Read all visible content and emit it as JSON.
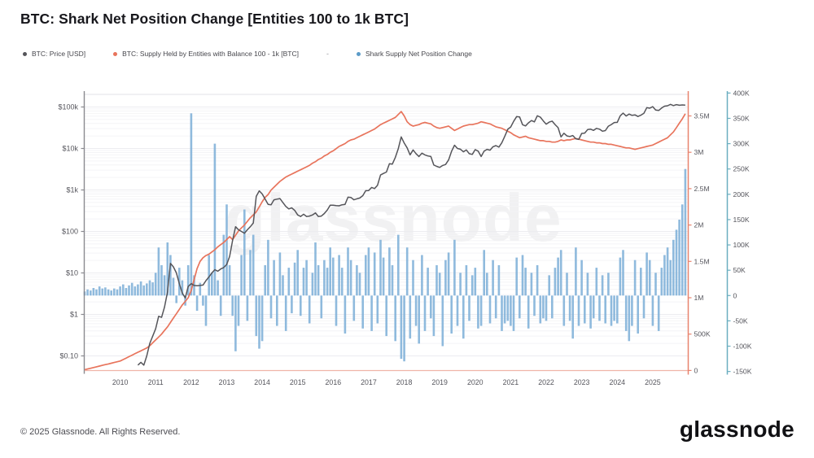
{
  "title": "BTC: Shark Net Position Change [Entities 100 to 1k BTC]",
  "legend": {
    "items": [
      {
        "label": "BTC: Price [USD]",
        "color": "#55555a"
      },
      {
        "label": "BTC: Supply Held by Entities with Balance 100 - 1k [BTC]",
        "color": "#e8745c"
      },
      {
        "label": "Shark Supply Net Position Change",
        "color": "#5b9bc8"
      }
    ],
    "separator": "-"
  },
  "watermark": "glassnode",
  "footer": {
    "copyright": "© 2025 Glassnode. All Rights Reserved.",
    "brand": "glassnode"
  },
  "colors": {
    "price_line": "#55555a",
    "supply_line": "#e8745c",
    "bars": "#7fb1d8",
    "axis_left": "#8a8a90",
    "axis_supply": "#e8836e",
    "axis_net": "#6aaec0",
    "axis_bottom": "#f0b4a8",
    "grid_major": "#ececf0",
    "grid_minor": "#f4f4f6",
    "plot_top_border": "#e4e4e8"
  },
  "axes": {
    "price": {
      "ticks": [
        "$100k",
        "$10k",
        "$1k",
        "$100",
        "$10",
        "$1",
        "$0.10"
      ],
      "values": [
        100000,
        10000,
        1000,
        100,
        10,
        1,
        0.1
      ]
    },
    "supply": {
      "ticks": [
        "3.5M",
        "3M",
        "2.5M",
        "2M",
        "1.5M",
        "1M",
        "500K",
        "0"
      ],
      "values": [
        3.5,
        3,
        2.5,
        2,
        1.5,
        1,
        0.5,
        0
      ]
    },
    "net": {
      "ticks": [
        "400K",
        "350K",
        "300K",
        "250K",
        "200K",
        "150K",
        "100K",
        "50K",
        "0",
        "-50K",
        "-100K",
        "-150K"
      ],
      "values": [
        400,
        350,
        300,
        250,
        200,
        150,
        100,
        50,
        0,
        -50,
        -100,
        -150
      ]
    },
    "x": {
      "ticks": [
        "2010",
        "2011",
        "2012",
        "2013",
        "2014",
        "2015",
        "2016",
        "2017",
        "2018",
        "2019",
        "2020",
        "2021",
        "2022",
        "2023",
        "2024",
        "2025"
      ]
    }
  },
  "chart_data": {
    "type": "mixed",
    "title": "BTC: Shark Net Position Change [Entities 100 to 1k BTC]",
    "x_start_year": 2009.0,
    "x_step_years": 0.0833333,
    "x_range": [
      2009.0,
      2026.0
    ],
    "x_tick_years": [
      2010,
      2011,
      2012,
      2013,
      2014,
      2015,
      2016,
      2017,
      2018,
      2019,
      2020,
      2021,
      2022,
      2023,
      2024,
      2025
    ],
    "grid": "horizontal-log-minor",
    "legend_position": "top-left",
    "y_axes": {
      "price_usd_log": {
        "scale": "log",
        "range": [
          0.1,
          100000
        ],
        "side": "left",
        "unit": "USD"
      },
      "supply_million_btc": {
        "scale": "linear",
        "range": [
          0,
          3.5
        ],
        "side": "right-inner",
        "unit": "M BTC"
      },
      "net_change_thousand_btc": {
        "scale": "linear",
        "range": [
          -150,
          400
        ],
        "side": "right-outer",
        "unit": "K BTC"
      }
    },
    "series": [
      {
        "name": "BTC: Price [USD]",
        "type": "line",
        "y_axis": "price_usd_log",
        "color": "#55555a",
        "values": [
          null,
          null,
          null,
          null,
          null,
          null,
          null,
          null,
          null,
          null,
          null,
          null,
          null,
          null,
          null,
          null,
          null,
          null,
          0.06,
          0.07,
          0.06,
          0.1,
          0.2,
          0.3,
          0.45,
          0.9,
          0.85,
          1.5,
          3.5,
          17,
          14,
          10,
          5.5,
          3.3,
          2.5,
          4.7,
          5.5,
          5.0,
          4.9,
          5.0,
          5.1,
          6.5,
          8,
          10,
          12,
          11,
          12.5,
          13.5,
          16,
          25,
          60,
          130,
          110,
          100,
          90,
          110,
          130,
          160,
          700,
          950,
          800,
          600,
          450,
          440,
          580,
          600,
          620,
          500,
          400,
          350,
          370,
          320,
          250,
          230,
          260,
          230,
          235,
          250,
          280,
          230,
          235,
          270,
          330,
          430,
          430,
          420,
          415,
          440,
          450,
          670,
          660,
          580,
          610,
          640,
          730,
          960,
          970,
          1150,
          1080,
          1300,
          2300,
          2500,
          2700,
          4300,
          4200,
          6100,
          9900,
          19000,
          13500,
          10300,
          7000,
          9200,
          7500,
          6400,
          7700,
          7000,
          6600,
          6400,
          4000,
          3700,
          3500,
          3900,
          4100,
          5300,
          8500,
          12000,
          10000,
          9600,
          8300,
          9200,
          7500,
          7200,
          9400,
          8600,
          6400,
          8600,
          9500,
          9100,
          11000,
          11700,
          10800,
          13800,
          19600,
          29000,
          33000,
          45000,
          58800,
          57700,
          37300,
          35000,
          41500,
          47000,
          43800,
          61300,
          57000,
          46200,
          38500,
          43200,
          45500,
          37700,
          31800,
          19000,
          23300,
          20000,
          19400,
          20500,
          17100,
          16500,
          23100,
          23500,
          28500,
          29200,
          27200,
          30500,
          29200,
          26000,
          27000,
          34500,
          37700,
          42300,
          42600,
          61200,
          71300,
          60600,
          67500,
          62700,
          64600,
          59000,
          63300,
          70200,
          96400,
          93400,
          102000,
          84300,
          82500,
          94200,
          104600,
          107100,
          115800,
          108200,
          114000,
          110000,
          112000,
          111000
        ]
      },
      {
        "name": "BTC: Supply Held by Entities with Balance 100 - 1k [BTC]",
        "type": "line",
        "y_axis": "supply_million_btc",
        "color": "#e8745c",
        "values": [
          0.01,
          0.02,
          0.03,
          0.04,
          0.05,
          0.06,
          0.07,
          0.08,
          0.09,
          0.1,
          0.11,
          0.12,
          0.13,
          0.15,
          0.17,
          0.19,
          0.21,
          0.23,
          0.25,
          0.27,
          0.29,
          0.31,
          0.34,
          0.38,
          0.42,
          0.46,
          0.5,
          0.55,
          0.6,
          0.66,
          0.72,
          0.78,
          0.84,
          0.9,
          0.95,
          1.0,
          1.1,
          1.25,
          1.4,
          1.5,
          1.55,
          1.58,
          1.6,
          1.63,
          1.66,
          1.7,
          1.73,
          1.76,
          1.8,
          1.84,
          1.8,
          1.86,
          1.92,
          1.96,
          2.0,
          2.05,
          2.1,
          2.14,
          2.18,
          2.25,
          2.32,
          2.38,
          2.42,
          2.48,
          2.52,
          2.56,
          2.6,
          2.63,
          2.66,
          2.68,
          2.7,
          2.72,
          2.74,
          2.76,
          2.78,
          2.8,
          2.82,
          2.85,
          2.87,
          2.9,
          2.92,
          2.95,
          2.97,
          3.0,
          3.02,
          3.05,
          3.08,
          3.1,
          3.12,
          3.15,
          3.17,
          3.18,
          3.2,
          3.22,
          3.24,
          3.26,
          3.28,
          3.3,
          3.32,
          3.35,
          3.38,
          3.4,
          3.42,
          3.44,
          3.46,
          3.48,
          3.52,
          3.56,
          3.5,
          3.42,
          3.38,
          3.36,
          3.37,
          3.38,
          3.4,
          3.41,
          3.4,
          3.39,
          3.36,
          3.34,
          3.33,
          3.34,
          3.35,
          3.36,
          3.33,
          3.3,
          3.32,
          3.34,
          3.36,
          3.37,
          3.38,
          3.38,
          3.39,
          3.4,
          3.42,
          3.41,
          3.4,
          3.39,
          3.37,
          3.35,
          3.34,
          3.33,
          3.31,
          3.29,
          3.27,
          3.24,
          3.22,
          3.2,
          3.21,
          3.22,
          3.2,
          3.19,
          3.18,
          3.17,
          3.16,
          3.16,
          3.15,
          3.15,
          3.14,
          3.14,
          3.15,
          3.17,
          3.16,
          3.17,
          3.17,
          3.18,
          3.19,
          3.18,
          3.17,
          3.16,
          3.15,
          3.14,
          3.14,
          3.13,
          3.13,
          3.12,
          3.12,
          3.11,
          3.11,
          3.1,
          3.09,
          3.08,
          3.07,
          3.06,
          3.06,
          3.05,
          3.04,
          3.05,
          3.06,
          3.07,
          3.08,
          3.09,
          3.1,
          3.12,
          3.14,
          3.16,
          3.18,
          3.2,
          3.24,
          3.28,
          3.34,
          3.4,
          3.46,
          3.53
        ]
      },
      {
        "name": "Shark Supply Net Position Change",
        "type": "bar",
        "y_axis": "net_change_thousand_btc",
        "color": "#7fb1d8",
        "values": [
          8,
          12,
          10,
          15,
          12,
          18,
          14,
          16,
          12,
          10,
          14,
          12,
          18,
          22,
          15,
          20,
          25,
          18,
          22,
          28,
          20,
          24,
          30,
          26,
          45,
          95,
          60,
          40,
          105,
          80,
          35,
          -15,
          55,
          30,
          -20,
          60,
          360,
          40,
          -30,
          25,
          -20,
          -60,
          80,
          45,
          300,
          30,
          -40,
          120,
          180,
          60,
          -40,
          -110,
          -60,
          80,
          170,
          -50,
          90,
          120,
          -80,
          -105,
          -90,
          60,
          110,
          -45,
          70,
          -60,
          85,
          40,
          -70,
          55,
          -35,
          65,
          90,
          -40,
          55,
          70,
          -55,
          45,
          105,
          60,
          -45,
          70,
          55,
          95,
          75,
          -60,
          80,
          55,
          -75,
          95,
          70,
          -50,
          60,
          45,
          -65,
          80,
          95,
          -70,
          85,
          -55,
          110,
          75,
          -80,
          95,
          60,
          -90,
          120,
          -125,
          -130,
          95,
          -85,
          70,
          -60,
          -95,
          80,
          -70,
          55,
          -45,
          -80,
          60,
          45,
          -100,
          70,
          85,
          -75,
          110,
          -60,
          45,
          -85,
          60,
          -50,
          40,
          55,
          -65,
          -60,
          90,
          45,
          -55,
          70,
          -45,
          60,
          -70,
          -55,
          -50,
          -60,
          -70,
          75,
          -45,
          80,
          55,
          -65,
          45,
          -40,
          60,
          -55,
          -45,
          -50,
          40,
          -45,
          55,
          75,
          90,
          -60,
          45,
          -50,
          -85,
          95,
          -60,
          70,
          -55,
          45,
          -65,
          -45,
          55,
          -50,
          40,
          -55,
          45,
          -60,
          -50,
          -55,
          75,
          90,
          -70,
          -90,
          -60,
          70,
          -75,
          55,
          -45,
          85,
          70,
          -60,
          45,
          -70,
          55,
          80,
          95,
          70,
          110,
          130,
          150,
          180,
          250
        ]
      }
    ]
  }
}
